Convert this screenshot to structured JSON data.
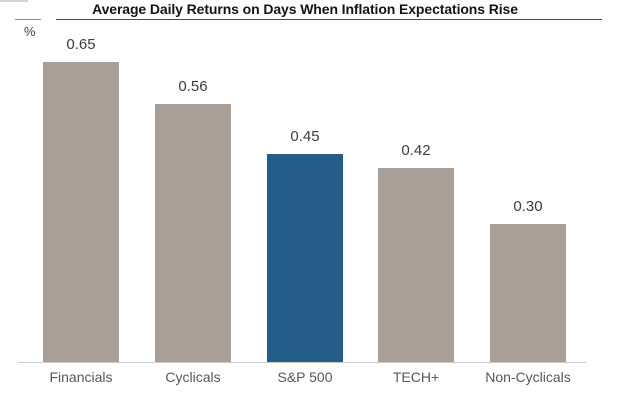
{
  "chart_data": {
    "type": "bar",
    "title": "Average Daily Returns on Days When Inflation Expectations Rise",
    "ylabel": "%",
    "xlabel": "",
    "categories": [
      "Financials",
      "Cyclicals",
      "S&P 500",
      "TECH+",
      "Non-Cyclicals"
    ],
    "values": [
      0.65,
      0.56,
      0.45,
      0.42,
      0.3
    ],
    "value_labels": [
      "0.65",
      "0.56",
      "0.45",
      "0.42",
      "0.30"
    ],
    "ylim": [
      0,
      0.7
    ],
    "grid": false,
    "legend": "none",
    "highlight_index": 2,
    "default_bar_color": "#A8A098",
    "highlight_bar_color": "#255D8A",
    "bar_colors": [
      "#A8A098",
      "#A8A098",
      "#255D8A",
      "#A8A098",
      "#A8A098"
    ]
  },
  "colors": {
    "background": "#FFFFFF",
    "title_color": "#141414",
    "value_color": "#3D3D3D",
    "category_color": "#585858",
    "axis_color": "#CCCBC9",
    "rule_dark": "#4A4A4A",
    "rule_light": "#8C8C8C",
    "artifact": "#D8D4D0"
  }
}
